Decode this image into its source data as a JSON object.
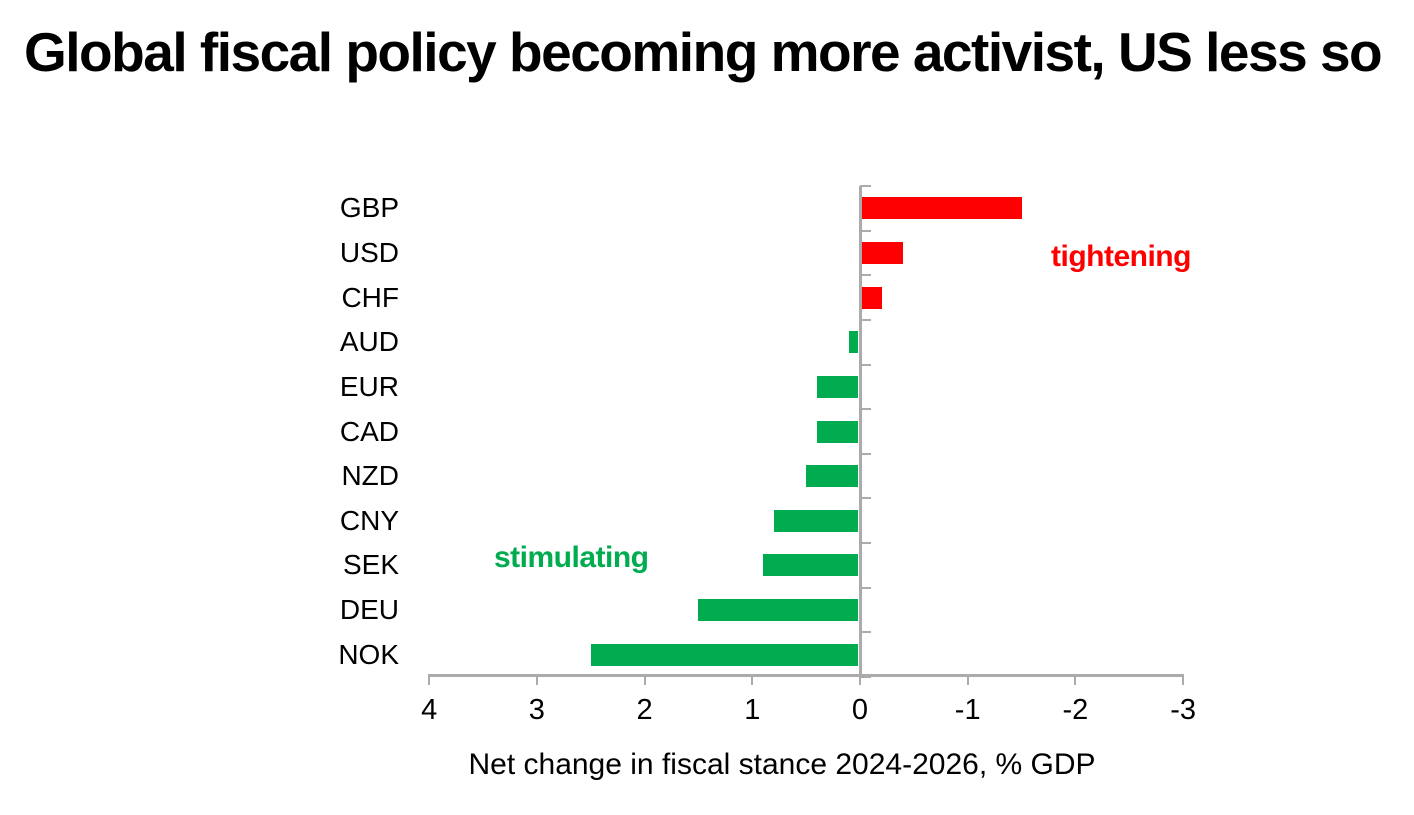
{
  "title": "Global fiscal policy becoming more activist, US less so",
  "chart_data": {
    "type": "bar",
    "orientation": "horizontal-diverging",
    "title": "Global fiscal policy becoming more activist, US less so",
    "xlabel": "Net change in fiscal stance 2024-2026, % GDP",
    "categories": [
      "GBP",
      "USD",
      "CHF",
      "AUD",
      "EUR",
      "CAD",
      "NZD",
      "CNY",
      "SEK",
      "DEU",
      "NOK"
    ],
    "values": [
      -1.5,
      -0.4,
      -0.2,
      0.1,
      0.4,
      0.4,
      0.5,
      0.8,
      0.9,
      1.5,
      2.5
    ],
    "value_unit": "% GDP",
    "x_ticks": [
      4,
      3,
      2,
      1,
      0,
      -1,
      -2,
      -3
    ],
    "x_axis_left_to_right": [
      4,
      -3
    ],
    "x_axis_reversed": true,
    "grid": "off",
    "legend": "none",
    "positive_meaning": "stimulating (bars extend left, green)",
    "negative_meaning": "tightening (bars extend right, red)",
    "annotations": [
      {
        "text": "tightening",
        "color": "#FF0000"
      },
      {
        "text": "stimulating",
        "color": "#00AC4F"
      }
    ],
    "colors": {
      "positive_bar": "#00AC4F",
      "negative_bar": "#FF0000",
      "axis": "#ABABAB",
      "text": "#000000"
    }
  }
}
